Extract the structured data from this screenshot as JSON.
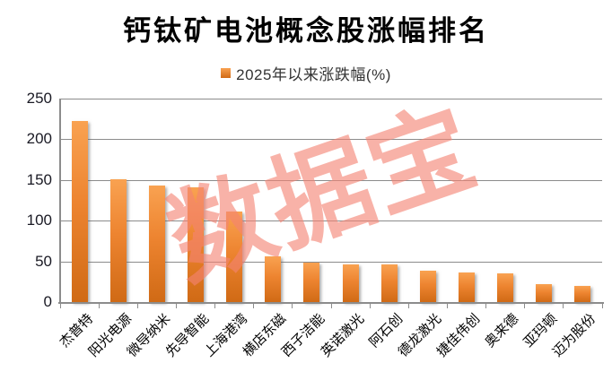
{
  "title": "钙钛矿电池概念股涨幅排名",
  "legend": {
    "label": "2025年以来涨跌幅(%)"
  },
  "watermark": {
    "text": "数据宝"
  },
  "colors": {
    "bar_top": "#F9A251",
    "bar_bottom": "#D06A15",
    "grid": "#8C8C8C",
    "axis": "#8C8C8C",
    "watermark": "rgba(244,130,115,0.62)",
    "legend_marker": "#E87D22"
  },
  "chart_data": {
    "type": "bar",
    "title": "钙钛矿电池概念股涨幅排名",
    "legend_entries": [
      "2025年以来涨跌幅(%)"
    ],
    "legend_position": "top-center",
    "categories": [
      "杰普特",
      "阳光电源",
      "微导纳米",
      "先导智能",
      "上海港湾",
      "横店东磁",
      "西子洁能",
      "英诺激光",
      "阿石创",
      "德龙激光",
      "捷佳伟创",
      "奥来德",
      "亚玛顿",
      "迈为股份"
    ],
    "values": [
      223,
      151,
      143,
      141,
      111,
      56,
      48,
      46,
      46,
      39,
      36,
      35,
      22,
      20
    ],
    "xlabel": "",
    "ylabel": "",
    "ylim": [
      0,
      250
    ],
    "yticks": [
      0,
      50,
      100,
      150,
      200,
      250
    ],
    "grid": true,
    "annotations": [
      "数据宝"
    ]
  }
}
